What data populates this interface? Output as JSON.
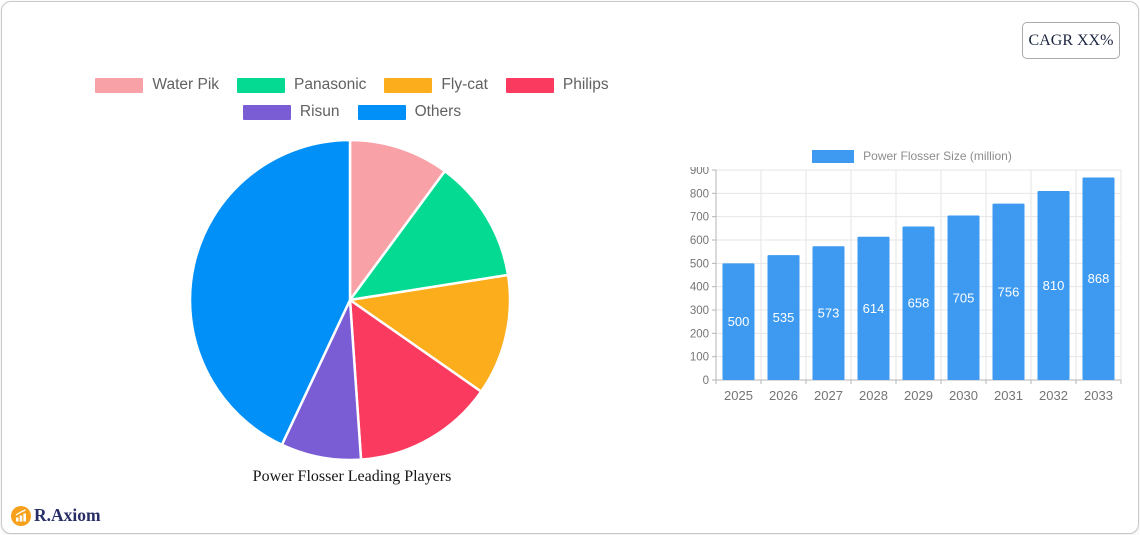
{
  "header": {
    "cagr_label": "CAGR XX%"
  },
  "branding": {
    "logo_text": "R.Axiom",
    "logo_icon": "growth-chart-icon",
    "logo_icon_color": "#f6a01b",
    "logo_text_color": "#282e66"
  },
  "chart_data": [
    {
      "type": "pie",
      "title": "Power Flosser Leading Players",
      "labels": [
        "Water Pik",
        "Panasonic",
        "Fly-cat",
        "Philips",
        "Risun",
        "Others"
      ],
      "values": [
        10.1,
        12.4,
        12.2,
        14.2,
        8.1,
        43.0
      ],
      "unit": "% market share (estimated from slice angles, no numeric labels shown)",
      "colors": [
        "#f8a1a7",
        "#05da92",
        "#fbad1b",
        "#fa3a5f",
        "#7a5cd5",
        "#0190f8"
      ],
      "start_angle": "top",
      "direction": "clockwise",
      "legend_position": "top",
      "legend_rows": [
        [
          "Water Pik",
          "Panasonic",
          "Fly-cat",
          "Philips"
        ],
        [
          "Risun",
          "Others"
        ]
      ]
    },
    {
      "type": "bar",
      "legend": "Power Flosser Size (million)",
      "categories": [
        "2025",
        "2026",
        "2027",
        "2028",
        "2029",
        "2030",
        "2031",
        "2032",
        "2033"
      ],
      "values": [
        500,
        535,
        573,
        614,
        658,
        705,
        756,
        810,
        868
      ],
      "xlabel": "",
      "ylabel": "",
      "ylim": [
        0,
        900
      ],
      "ytick_step": 100,
      "bar_color": "#3d9af0",
      "value_label_color": "#ffffff",
      "grid": true,
      "legend_position": "top"
    }
  ],
  "theme": {
    "axis_text_color": "#757575",
    "grid_color": "#e6e6e6",
    "axis_line_color": "#b5b5b5",
    "pie_legend_text_color": "#616161",
    "card_border_color": "#c9c9c9"
  }
}
